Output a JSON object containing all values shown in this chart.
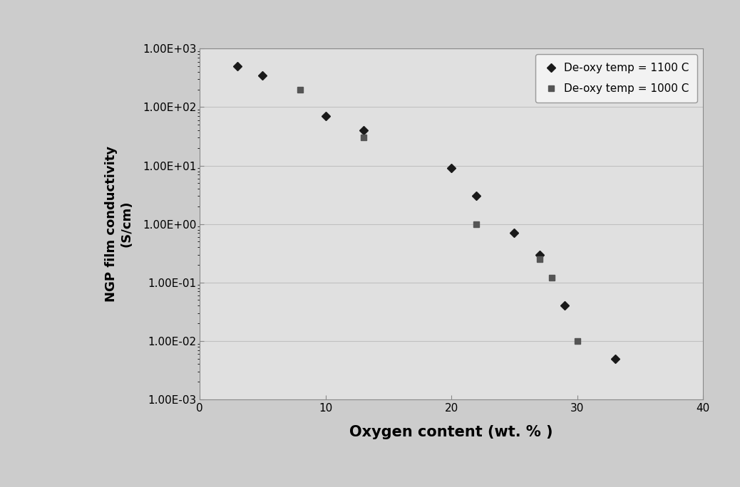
{
  "series_1100": {
    "label": "De-oxy temp = 1100 C",
    "x": [
      3,
      5,
      10,
      13,
      20,
      22,
      25,
      27,
      29,
      33
    ],
    "y": [
      500,
      350,
      70,
      40,
      9,
      3,
      0.7,
      0.3,
      0.04,
      0.005
    ],
    "color": "#1a1a1a",
    "marker": "D",
    "markersize": 6
  },
  "series_1000": {
    "label": "De-oxy temp = 1000 C",
    "x": [
      8,
      13,
      22,
      27,
      28,
      30
    ],
    "y": [
      200,
      30,
      1.0,
      0.25,
      0.12,
      0.01
    ],
    "color": "#555555",
    "marker": "s",
    "markersize": 6
  },
  "xlabel": "Oxygen content (wt. % )",
  "ylabel": "NGP film conductivity\n(S/cm)",
  "xlim": [
    0,
    40
  ],
  "ylim_log_min": -3,
  "ylim_log_max": 3,
  "yticks_labels": [
    "1.00E-03",
    "1.00E-02",
    "1.00E-01",
    "1.00E+00",
    "1.00E+01",
    "1.00E+02",
    "1.00E+03"
  ],
  "yticks_values": [
    0.001,
    0.01,
    0.1,
    1.0,
    10.0,
    100.0,
    1000.0
  ],
  "xticks": [
    0,
    10,
    20,
    30,
    40
  ],
  "fig_bg_color": "#cccccc",
  "plot_bg_color": "#e0e0e0",
  "grid_color": "#c0c0c0",
  "spine_color": "#888888",
  "legend_loc": "upper right",
  "xlabel_fontsize": 15,
  "ylabel_fontsize": 13,
  "tick_fontsize": 11,
  "legend_fontsize": 11
}
